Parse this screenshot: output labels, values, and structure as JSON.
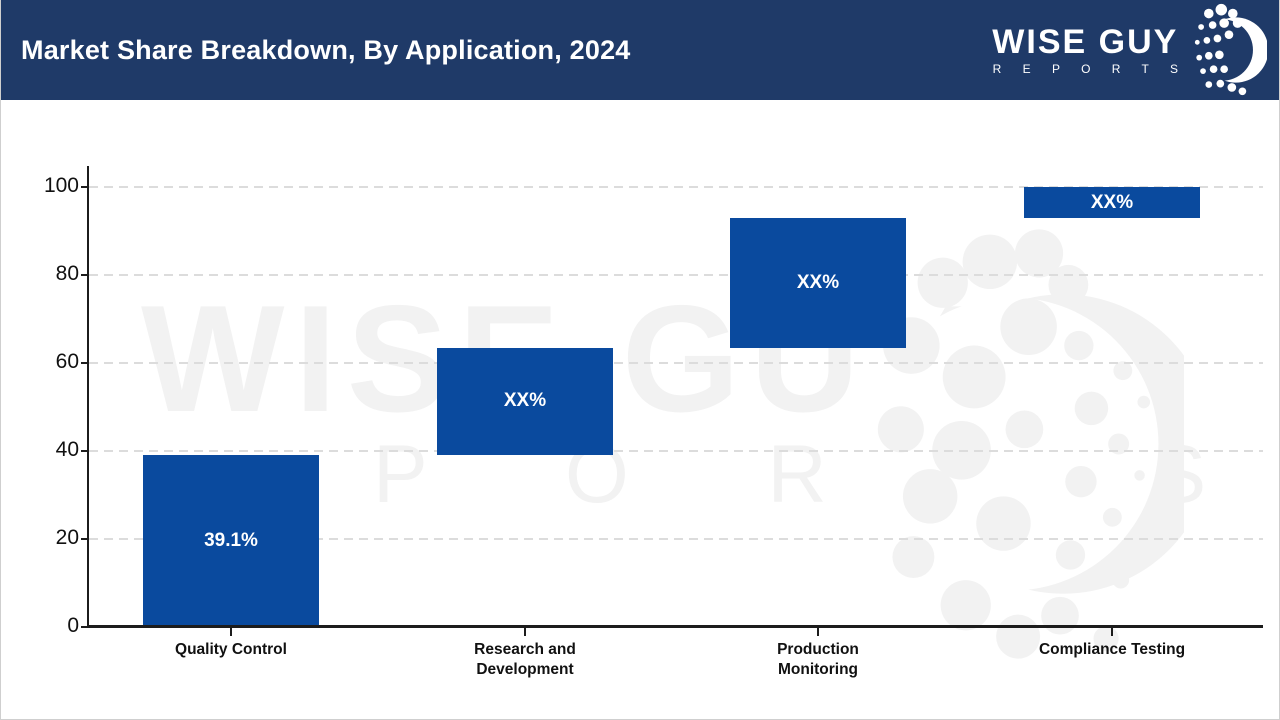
{
  "header": {
    "title": "Market Share Breakdown, By Application, 2024",
    "logo": {
      "line1": "WISE GUY",
      "line2": "R E P O R T S"
    }
  },
  "watermark": {
    "line1": "WISE GUY",
    "line2": "P O R T S"
  },
  "colors": {
    "header_bg": "#1f3a68",
    "bar": "#0a4a9e",
    "axis": "#1c1c1c",
    "grid": "#dcdcdc",
    "bar_label": "#ffffff",
    "watermark": "#f2f2f2"
  },
  "chart_data": {
    "type": "bar",
    "subtype": "waterfall",
    "title": "Market Share Breakdown, By Application, 2024",
    "unit": "%",
    "categories": [
      "Quality Control",
      "Research and\nDevelopment",
      "Production\nMonitoring",
      "Compliance Testing"
    ],
    "bars": [
      {
        "category": "Quality Control",
        "start": 0,
        "end": 39.1,
        "label": "39.1%"
      },
      {
        "category": "Research and Development",
        "start": 39.1,
        "end": 63.5,
        "label": "XX%"
      },
      {
        "category": "Production Monitoring",
        "start": 63.5,
        "end": 92.9,
        "label": "XX%"
      },
      {
        "category": "Compliance Testing",
        "start": 92.9,
        "end": 100,
        "label": "XX%"
      }
    ],
    "ylim": [
      0,
      100
    ],
    "yticks": [
      0,
      20,
      40,
      60,
      80,
      100
    ],
    "grid": "dashed-horizontal",
    "legend": "none"
  }
}
